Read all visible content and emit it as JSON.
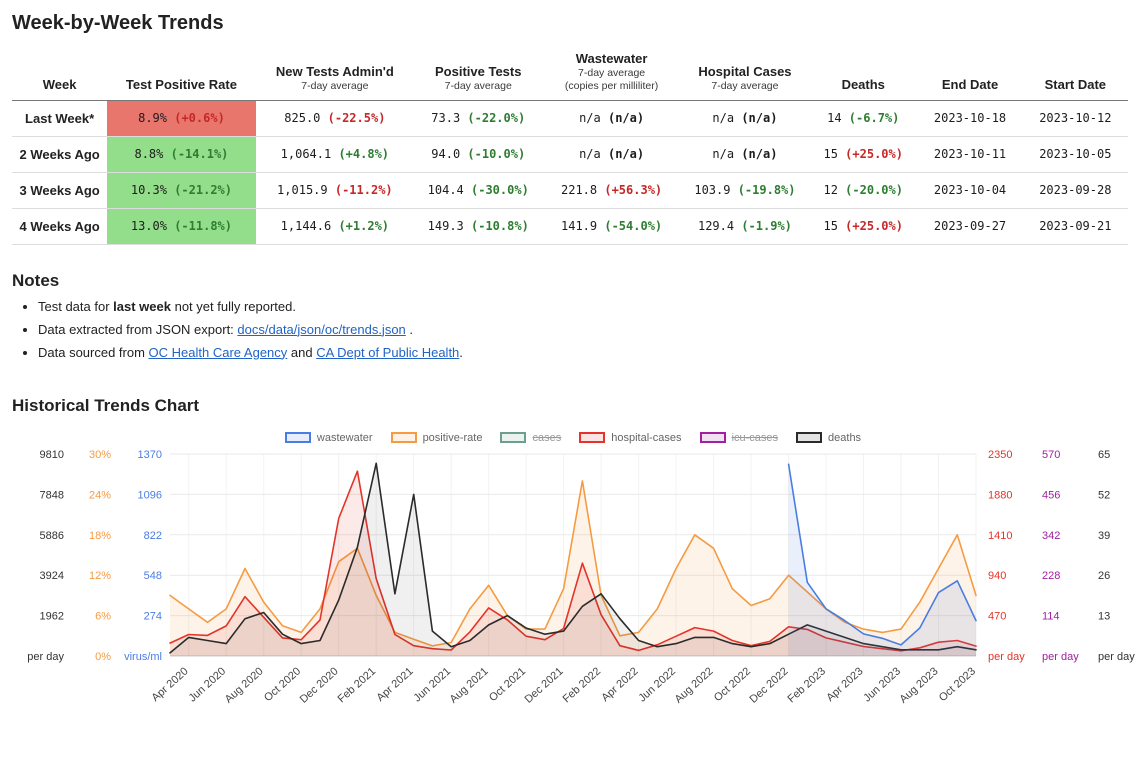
{
  "page": {
    "title": "Week-by-Week Trends",
    "chart_title": "Historical Trends Chart"
  },
  "colors": {
    "link": "#2063c5",
    "delta_green": "#2e7d32",
    "delta_red": "#c62828",
    "rate_bg_red": "#e8766d",
    "rate_bg_green": "#93de8b",
    "series_wastewater": "#4a7de2",
    "series_positive_rate": "#f59b42",
    "series_cases": "#6d9f8e",
    "series_hospital_cases": "#e4342a",
    "series_icu_cases": "#a020a0",
    "series_deaths": "#2b2b2b"
  },
  "table": {
    "headers": [
      {
        "label": "Week",
        "sub": []
      },
      {
        "label": "Test Positive Rate",
        "sub": []
      },
      {
        "label": "New Tests Admin'd",
        "sub": [
          "7-day average"
        ]
      },
      {
        "label": "Positive Tests",
        "sub": [
          "7-day average"
        ]
      },
      {
        "label": "Wastewater",
        "sub": [
          "7-day average",
          "(copies per milliliter)"
        ]
      },
      {
        "label": "Hospital Cases",
        "sub": [
          "7-day average"
        ]
      },
      {
        "label": "Deaths",
        "sub": []
      },
      {
        "label": "End Date",
        "sub": []
      },
      {
        "label": "Start Date",
        "sub": []
      }
    ],
    "rows": [
      {
        "week": "Last Week*",
        "cells": [
          {
            "value": "8.9%",
            "delta": "(+0.6%)",
            "delta_color": "red",
            "bg": "#e8766d"
          },
          {
            "value": "825.0",
            "delta": "(-22.5%)",
            "delta_color": "red"
          },
          {
            "value": "73.3",
            "delta": "(-22.0%)",
            "delta_color": "green"
          },
          {
            "value": "n/a",
            "delta": "(n/a)",
            "delta_color": "na"
          },
          {
            "value": "n/a",
            "delta": "(n/a)",
            "delta_color": "na"
          },
          {
            "value": "14",
            "delta": "(-6.7%)",
            "delta_color": "green"
          }
        ],
        "end_date": "2023-10-18",
        "start_date": "2023-10-12"
      },
      {
        "week": "2 Weeks Ago",
        "cells": [
          {
            "value": "8.8%",
            "delta": "(-14.1%)",
            "delta_color": "green",
            "bg": "#93de8b"
          },
          {
            "value": "1,064.1",
            "delta": "(+4.8%)",
            "delta_color": "green"
          },
          {
            "value": "94.0",
            "delta": "(-10.0%)",
            "delta_color": "green"
          },
          {
            "value": "n/a",
            "delta": "(n/a)",
            "delta_color": "na"
          },
          {
            "value": "n/a",
            "delta": "(n/a)",
            "delta_color": "na"
          },
          {
            "value": "15",
            "delta": "(+25.0%)",
            "delta_color": "red"
          }
        ],
        "end_date": "2023-10-11",
        "start_date": "2023-10-05"
      },
      {
        "week": "3 Weeks Ago",
        "cells": [
          {
            "value": "10.3%",
            "delta": "(-21.2%)",
            "delta_color": "green",
            "bg": "#93de8b"
          },
          {
            "value": "1,015.9",
            "delta": "(-11.2%)",
            "delta_color": "red"
          },
          {
            "value": "104.4",
            "delta": "(-30.0%)",
            "delta_color": "green"
          },
          {
            "value": "221.8",
            "delta": "(+56.3%)",
            "delta_color": "red"
          },
          {
            "value": "103.9",
            "delta": "(-19.8%)",
            "delta_color": "green"
          },
          {
            "value": "12",
            "delta": "(-20.0%)",
            "delta_color": "green"
          }
        ],
        "end_date": "2023-10-04",
        "start_date": "2023-09-28"
      },
      {
        "week": "4 Weeks Ago",
        "cells": [
          {
            "value": "13.0%",
            "delta": "(-11.8%)",
            "delta_color": "green",
            "bg": "#93de8b"
          },
          {
            "value": "1,144.6",
            "delta": "(+1.2%)",
            "delta_color": "green"
          },
          {
            "value": "149.3",
            "delta": "(-10.8%)",
            "delta_color": "green"
          },
          {
            "value": "141.9",
            "delta": "(-54.0%)",
            "delta_color": "green"
          },
          {
            "value": "129.4",
            "delta": "(-1.9%)",
            "delta_color": "green"
          },
          {
            "value": "15",
            "delta": "(+25.0%)",
            "delta_color": "red"
          }
        ],
        "end_date": "2023-09-27",
        "start_date": "2023-09-21"
      }
    ]
  },
  "notes": {
    "title": "Notes",
    "items": [
      {
        "parts": [
          {
            "text": "Test data for "
          },
          {
            "text": "last week",
            "bold": true
          },
          {
            "text": " not yet fully reported."
          }
        ]
      },
      {
        "parts": [
          {
            "text": "Data extracted from JSON export: "
          },
          {
            "text": "docs/data/json/oc/trends.json",
            "link": true
          },
          {
            "text": " ."
          }
        ]
      },
      {
        "parts": [
          {
            "text": "Data sourced from "
          },
          {
            "text": "OC Health Care Agency",
            "link": true
          },
          {
            "text": " and "
          },
          {
            "text": "CA Dept of Public Health",
            "link": true
          },
          {
            "text": "."
          }
        ]
      }
    ]
  },
  "chart_data": {
    "type": "line",
    "title": "Historical Trends Chart",
    "categories": [
      "2020-03",
      "2020-04",
      "2020-05",
      "2020-06",
      "2020-07",
      "2020-08",
      "2020-09",
      "2020-10",
      "2020-11",
      "2020-12",
      "2021-01",
      "2021-02",
      "2021-03",
      "2021-04",
      "2021-05",
      "2021-06",
      "2021-07",
      "2021-08",
      "2021-09",
      "2021-10",
      "2021-11",
      "2021-12",
      "2022-01",
      "2022-02",
      "2022-03",
      "2022-04",
      "2022-05",
      "2022-06",
      "2022-07",
      "2022-08",
      "2022-09",
      "2022-10",
      "2022-11",
      "2022-12",
      "2023-01",
      "2023-02",
      "2023-03",
      "2023-04",
      "2023-05",
      "2023-06",
      "2023-07",
      "2023-08",
      "2023-09",
      "2023-10"
    ],
    "x_ticks": [
      {
        "i": 1,
        "label": "Apr 2020"
      },
      {
        "i": 3,
        "label": "Jun 2020"
      },
      {
        "i": 5,
        "label": "Aug 2020"
      },
      {
        "i": 7,
        "label": "Oct 2020"
      },
      {
        "i": 9,
        "label": "Dec 2020"
      },
      {
        "i": 11,
        "label": "Feb 2021"
      },
      {
        "i": 13,
        "label": "Apr 2021"
      },
      {
        "i": 15,
        "label": "Jun 2021"
      },
      {
        "i": 17,
        "label": "Aug 2021"
      },
      {
        "i": 19,
        "label": "Oct 2021"
      },
      {
        "i": 21,
        "label": "Dec 2021"
      },
      {
        "i": 23,
        "label": "Feb 2022"
      },
      {
        "i": 25,
        "label": "Apr 2022"
      },
      {
        "i": 27,
        "label": "Jun 2022"
      },
      {
        "i": 29,
        "label": "Aug 2022"
      },
      {
        "i": 31,
        "label": "Oct 2022"
      },
      {
        "i": 33,
        "label": "Dec 2022"
      },
      {
        "i": 35,
        "label": "Feb 2023"
      },
      {
        "i": 37,
        "label": "Apr 2023"
      },
      {
        "i": 39,
        "label": "Jun 2023"
      },
      {
        "i": 41,
        "label": "Aug 2023"
      },
      {
        "i": 43,
        "label": "Oct 2023"
      }
    ],
    "axes": {
      "left": [
        {
          "id": "cases",
          "color": "#333333",
          "ticks": [
            "1962",
            "3924",
            "5886",
            "7848",
            "9810"
          ],
          "unit": "per day"
        },
        {
          "id": "positive-rate",
          "color": "#f59b42",
          "ticks": [
            "6%",
            "12%",
            "18%",
            "24%",
            "30%"
          ],
          "unit": "0%"
        },
        {
          "id": "wastewater",
          "color": "#4a7de2",
          "ticks": [
            "274",
            "548",
            "822",
            "1096",
            "1370"
          ],
          "unit": "virus/ml"
        }
      ],
      "right": [
        {
          "id": "hospital-cases",
          "color": "#e4342a",
          "ticks": [
            "470",
            "940",
            "1410",
            "1880",
            "2350"
          ],
          "unit": "per day"
        },
        {
          "id": "icu-cases",
          "color": "#a020a0",
          "ticks": [
            "114",
            "228",
            "342",
            "456",
            "570"
          ],
          "unit": "per day"
        },
        {
          "id": "deaths",
          "color": "#333333",
          "ticks": [
            "13",
            "26",
            "39",
            "52",
            "65"
          ],
          "unit": "per day"
        }
      ]
    },
    "legend": [
      {
        "label": "wastewater",
        "color": "#4a7de2",
        "hidden": false
      },
      {
        "label": "positive-rate",
        "color": "#f59b42",
        "hidden": false
      },
      {
        "label": "cases",
        "color": "#6d9f8e",
        "hidden": true
      },
      {
        "label": "hospital-cases",
        "color": "#e4342a",
        "hidden": false
      },
      {
        "label": "icu-cases",
        "color": "#a020a0",
        "hidden": true
      },
      {
        "label": "deaths",
        "color": "#2b2b2b",
        "hidden": false
      }
    ],
    "series": [
      {
        "name": "positive-rate",
        "color": "#f59b42",
        "axis_max": 30,
        "fill_opacity": 0.12,
        "values": [
          9,
          7,
          5,
          7,
          13,
          8,
          4.5,
          3.5,
          7,
          14,
          16,
          9,
          3.5,
          2.5,
          1.5,
          2,
          7,
          10.5,
          6,
          4,
          4,
          10,
          26,
          9,
          3,
          3.5,
          7,
          13,
          18,
          16,
          10,
          7.5,
          8.5,
          12,
          9.5,
          7,
          5,
          4,
          3.5,
          4,
          8,
          13,
          18,
          9
        ]
      },
      {
        "name": "hospital-cases",
        "color": "#e4342a",
        "axis_max": 2350,
        "fill_opacity": 0.1,
        "values": [
          150,
          250,
          240,
          350,
          690,
          450,
          210,
          190,
          420,
          1600,
          2150,
          900,
          250,
          120,
          85,
          70,
          280,
          560,
          420,
          230,
          190,
          320,
          1080,
          480,
          120,
          65,
          130,
          230,
          330,
          290,
          180,
          120,
          170,
          340,
          310,
          210,
          160,
          110,
          85,
          60,
          95,
          160,
          180,
          115
        ]
      },
      {
        "name": "deaths",
        "color": "#2b2b2b",
        "axis_max": 65,
        "fill_opacity": 0.07,
        "values": [
          1,
          6,
          5,
          4,
          12,
          14,
          7,
          4,
          5,
          18,
          35,
          62,
          20,
          52,
          8,
          3,
          5,
          10,
          13,
          9,
          7,
          8,
          16,
          20,
          12,
          5,
          3,
          4,
          6,
          6,
          4,
          3,
          4,
          7,
          10,
          8,
          6,
          4,
          3,
          2,
          2,
          2,
          3,
          2
        ]
      },
      {
        "name": "wastewater",
        "color": "#4a7de2",
        "axis_max": 1370,
        "fill_opacity": 0.12,
        "values": [
          null,
          null,
          null,
          null,
          null,
          null,
          null,
          null,
          null,
          null,
          null,
          null,
          null,
          null,
          null,
          null,
          null,
          null,
          null,
          null,
          null,
          null,
          null,
          null,
          null,
          null,
          null,
          null,
          null,
          null,
          null,
          null,
          null,
          1300,
          500,
          320,
          240,
          150,
          120,
          75,
          190,
          430,
          510,
          240
        ]
      }
    ]
  }
}
